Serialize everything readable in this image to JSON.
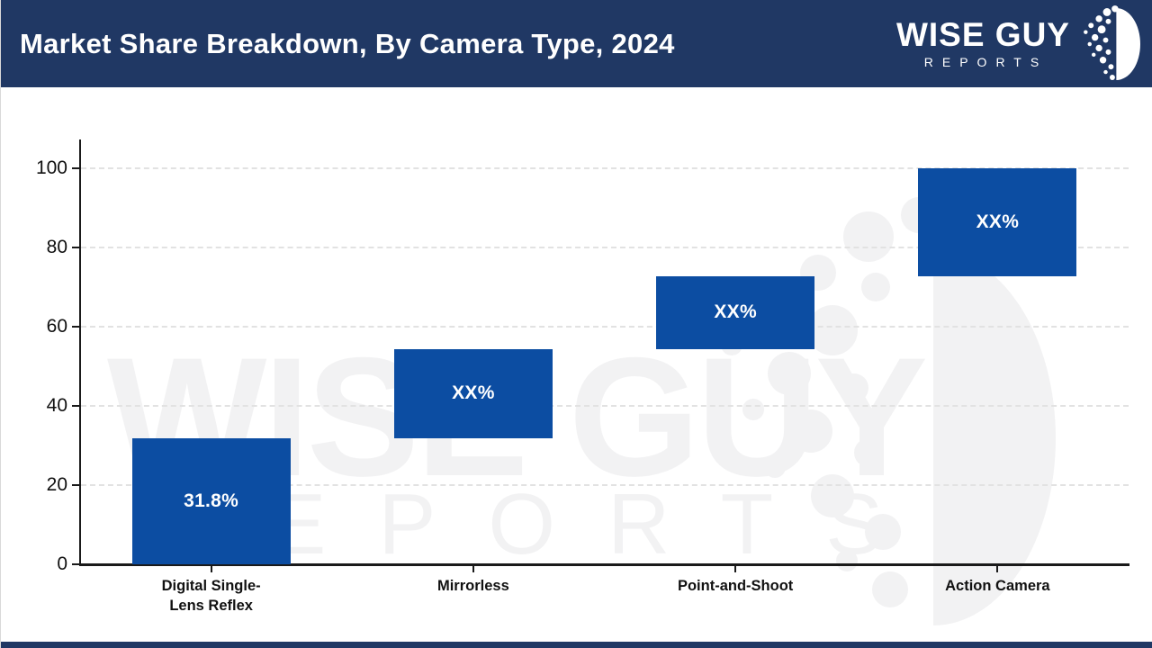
{
  "header": {
    "title": "Market Share Breakdown, By Camera Type, 2024",
    "brand": {
      "line1": "WISE GUY",
      "line2": "REPORTS"
    }
  },
  "watermark": {
    "line1": "WISE GUY",
    "line2": "REPORTS"
  },
  "colors": {
    "header_bg": "#203864",
    "footer_bg": "#203864",
    "bar": "#0c4da2",
    "bar_label": "#ffffff",
    "grid": "#e2e2e2",
    "axis": "#1a1a1a",
    "watermark": "#f2f2f3"
  },
  "chart_data": {
    "type": "bar",
    "subtype": "waterfall",
    "title": "Market Share Breakdown, By Camera Type, 2024",
    "categories": [
      "Digital Single-\nLens Reflex",
      "Mirrorless",
      "Point-and-Shoot",
      "Action Camera"
    ],
    "segments": [
      {
        "category": "Digital Single-Lens Reflex",
        "start": 0,
        "end": 31.8,
        "label": "31.8%"
      },
      {
        "category": "Mirrorless",
        "start": 31.8,
        "end": 54.4,
        "label": "XX%"
      },
      {
        "category": "Point-and-Shoot",
        "start": 54.4,
        "end": 72.7,
        "label": "XX%"
      },
      {
        "category": "Action Camera",
        "start": 72.7,
        "end": 100,
        "label": "XX%"
      }
    ],
    "ylim": [
      0,
      100
    ],
    "yticks": [
      0,
      20,
      40,
      60,
      80,
      100
    ],
    "xlabel": "",
    "ylabel": "",
    "unit": "%",
    "grid": "horizontal-dashed",
    "legend": false
  }
}
